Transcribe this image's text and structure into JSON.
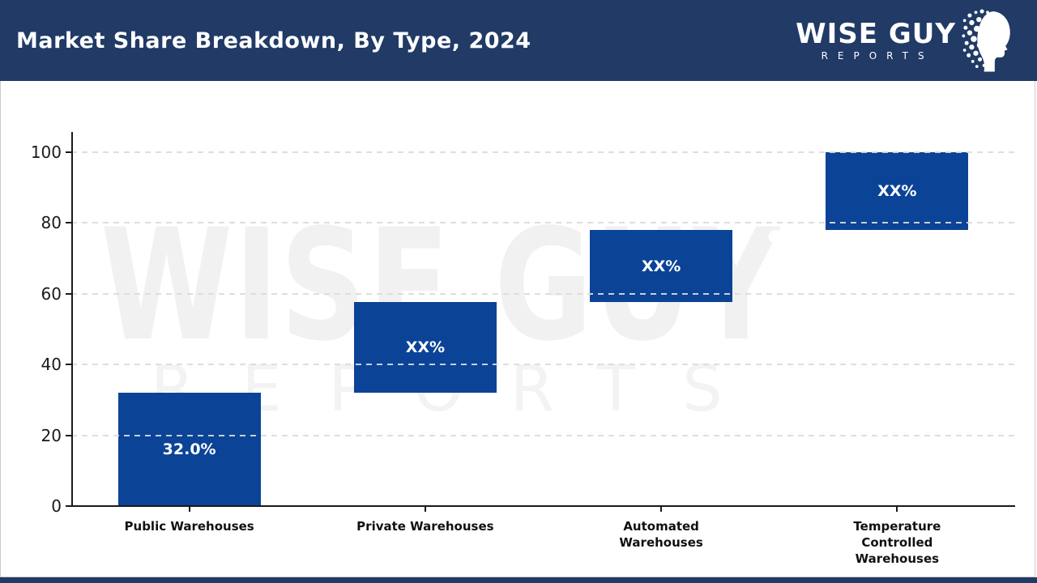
{
  "header": {
    "title": "Market Share Breakdown, By Type, 2024",
    "logo": {
      "line1": "WISE GUY",
      "line2": "REPORTS"
    }
  },
  "watermark": {
    "line1": "WISE GUY",
    "line2": "REPORTS"
  },
  "colors": {
    "header_bg": "#213a66",
    "bar": "#0b4397",
    "grid": "#dbdbdb",
    "axis": "#1a1a1a",
    "text": "#111111",
    "watermark": "#f1f1f1",
    "border": "#cccccc"
  },
  "chart_data": {
    "type": "bar",
    "subtype": "waterfall",
    "title": "Market Share Breakdown, By Type, 2024",
    "categories": [
      "Public Warehouses",
      "Private Warehouses",
      "Automated Warehouses",
      "Temperature Controlled Warehouses"
    ],
    "category_label_lines": [
      [
        "Public Warehouses"
      ],
      [
        "Private Warehouses"
      ],
      [
        "Automated",
        "Warehouses"
      ],
      [
        "Temperature",
        "Controlled",
        "Warehouses"
      ]
    ],
    "segments": [
      {
        "category": "Public Warehouses",
        "start": 0,
        "end": 32,
        "label": "32.0%"
      },
      {
        "category": "Private Warehouses",
        "start": 32,
        "end": 57.5,
        "label": "XX%"
      },
      {
        "category": "Automated Warehouses",
        "start": 57.5,
        "end": 78,
        "label": "XX%"
      },
      {
        "category": "Temperature Controlled Warehouses",
        "start": 78,
        "end": 100,
        "label": "XX%"
      }
    ],
    "xlabel": "",
    "ylabel": "",
    "yticks": [
      0,
      20,
      40,
      60,
      80,
      100
    ],
    "ylim": [
      0,
      106
    ],
    "grid": "dashed-horizontal",
    "legend": "none",
    "bar_color": "#0b4397",
    "bar_label_color": "#ffffff"
  }
}
